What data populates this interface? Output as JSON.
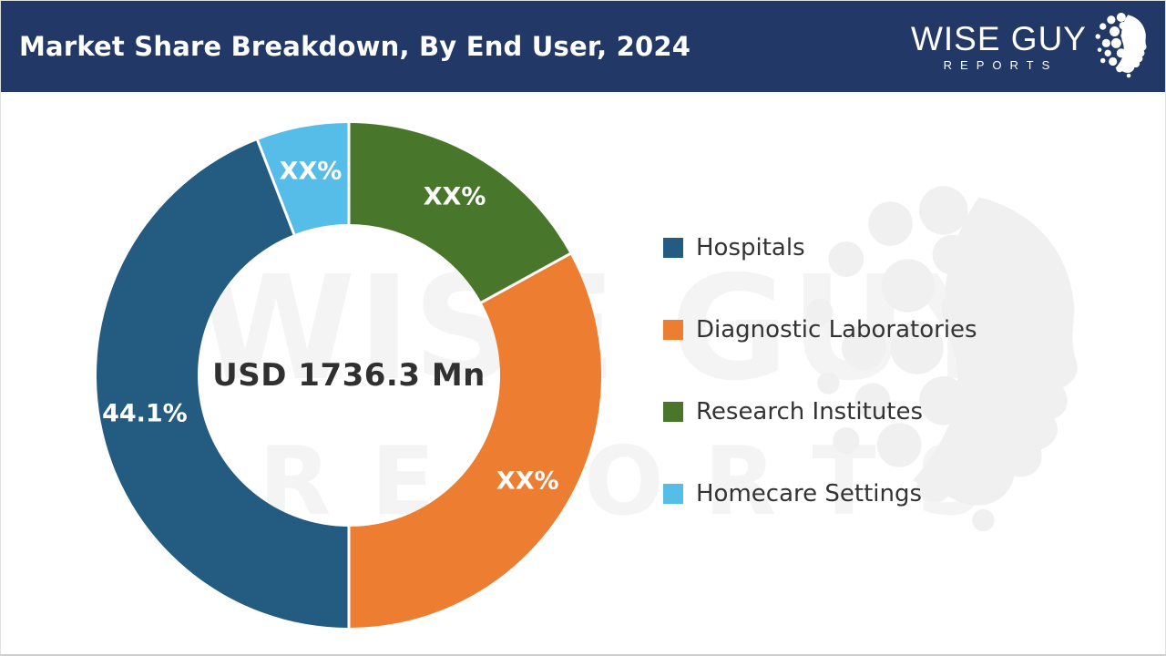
{
  "header": {
    "title": "Market Share Breakdown, By End User, 2024",
    "logo": {
      "name": "WISE GUY",
      "subtitle": "REPORTS"
    }
  },
  "watermark": {
    "line1": "WISE GUY",
    "line2": "REPORTS"
  },
  "chart_data": {
    "type": "pie",
    "subtype": "donut",
    "title": "Market Share Breakdown, By End User, 2024",
    "year": "2024",
    "dimension": "By End User",
    "center_label": "USD 1736.3 Mn",
    "total_value_usd_mn": 1736.3,
    "legend_position": "right",
    "slices": [
      {
        "name": "Research Institutes",
        "pct": 17.0,
        "label": "XX%",
        "color": "#48772B"
      },
      {
        "name": "Diagnostic Laboratories",
        "pct": 33.0,
        "label": "XX%",
        "color": "#ED7D31"
      },
      {
        "name": "Hospitals",
        "pct": 44.1,
        "label": "44.1%",
        "color": "#235C80"
      },
      {
        "name": "Homecare Settings",
        "pct": 5.9,
        "label": "XX%",
        "color": "#56BDE8"
      }
    ],
    "legend": [
      {
        "label": "Hospitals",
        "color": "#235C80"
      },
      {
        "label": "Diagnostic Laboratories",
        "color": "#ED7D31"
      },
      {
        "label": "Research Institutes",
        "color": "#48772B"
      },
      {
        "label": "Homecare Settings",
        "color": "#56BDE8"
      }
    ],
    "colors": {
      "header_bg": "#223866",
      "slice_label_text": "#FFFFFF",
      "center_text": "#303030",
      "watermark": "#F4F4F4"
    }
  }
}
